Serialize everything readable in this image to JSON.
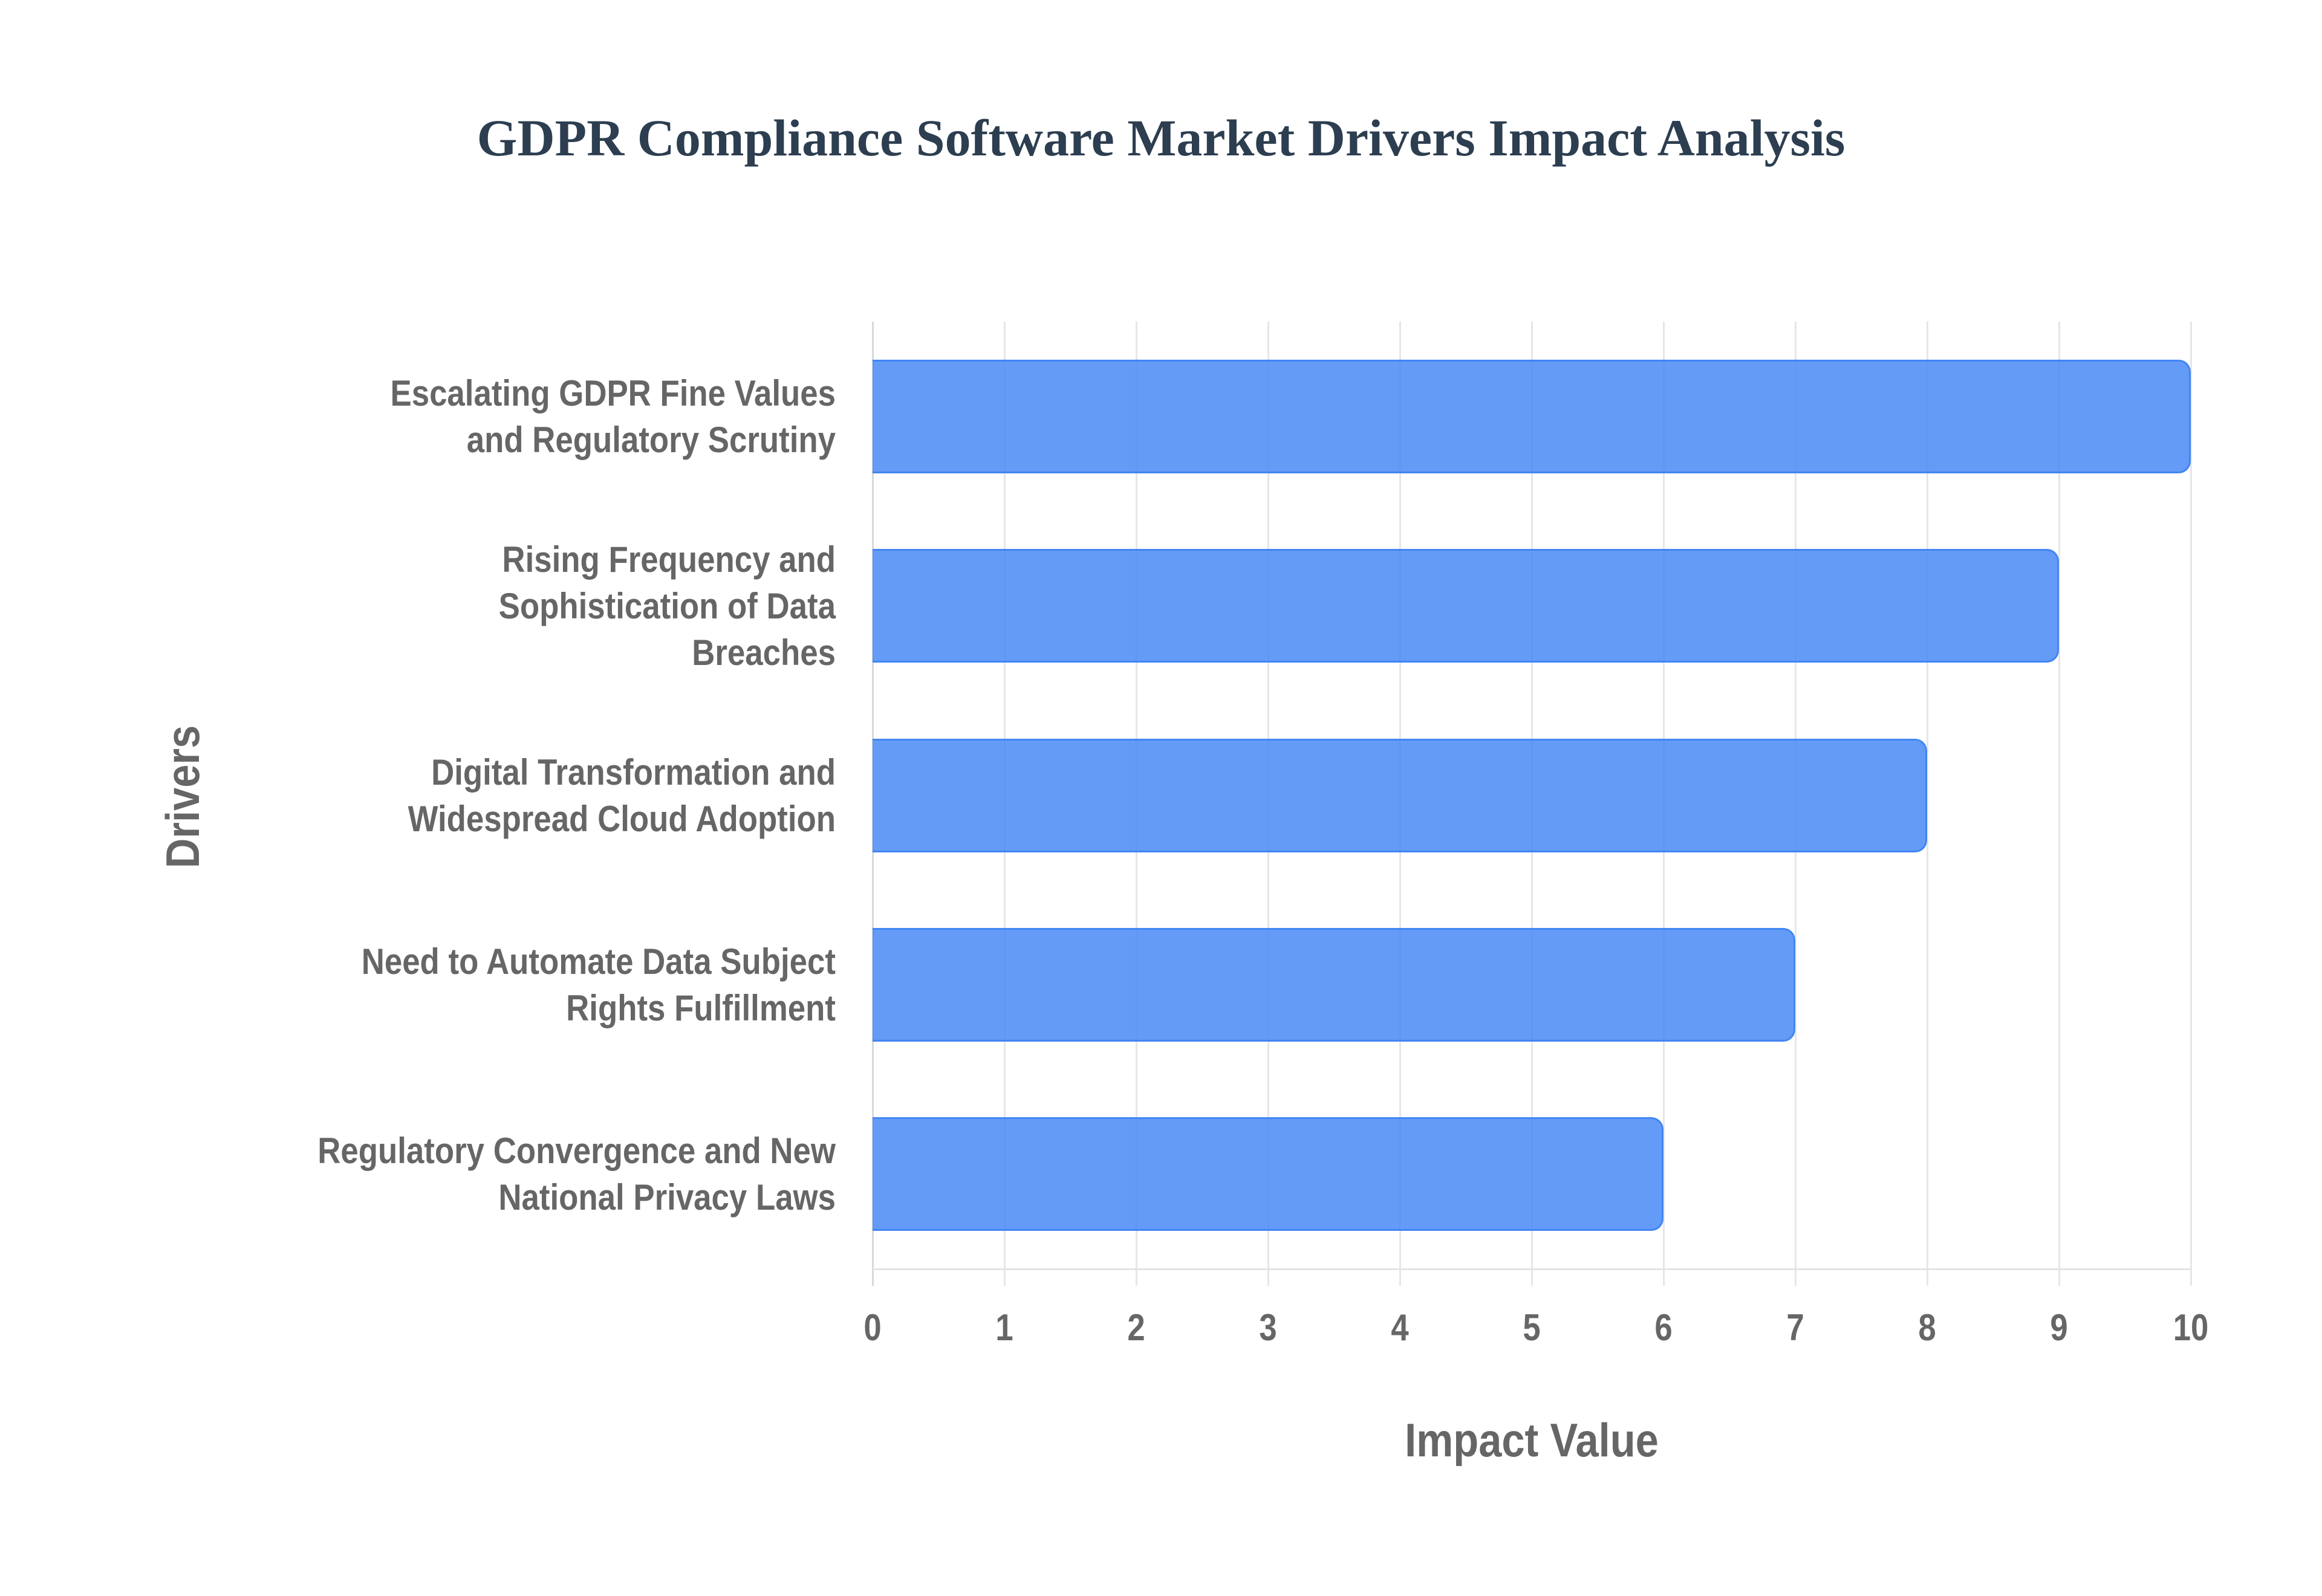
{
  "title": "GDPR Compliance Software Market Drivers Impact Analysis",
  "colors": {
    "title": "#2c3e50",
    "bar_fill": "rgba(66,133,244,0.82)",
    "bar_border": "#4285f4",
    "axis_text": "#666666",
    "grid": "#e6e6e6"
  },
  "axes": {
    "x_title": "Impact Value",
    "y_title": "Drivers",
    "x_ticks": [
      "0",
      "1",
      "2",
      "3",
      "4",
      "5",
      "6",
      "7",
      "8",
      "9",
      "10"
    ]
  },
  "bars": [
    {
      "label_lines": [
        "Escalating GDPR Fine Values",
        "and Regulatory Scrutiny"
      ],
      "value": 10
    },
    {
      "label_lines": [
        "Rising Frequency and",
        "Sophistication of Data",
        "Breaches"
      ],
      "value": 9
    },
    {
      "label_lines": [
        "Digital Transformation and",
        "Widespread Cloud Adoption"
      ],
      "value": 8
    },
    {
      "label_lines": [
        "Need to Automate Data Subject",
        "Rights Fulfillment"
      ],
      "value": 7
    },
    {
      "label_lines": [
        "Regulatory Convergence and New",
        "National Privacy Laws"
      ],
      "value": 6
    }
  ],
  "chart_data": {
    "type": "bar",
    "orientation": "horizontal",
    "title": "GDPR Compliance Software Market Drivers Impact Analysis",
    "categories": [
      "Escalating GDPR Fine Values and Regulatory Scrutiny",
      "Rising Frequency and Sophistication of Data Breaches",
      "Digital Transformation and Widespread Cloud Adoption",
      "Need to Automate Data Subject Rights Fulfillment",
      "Regulatory Convergence and New National Privacy Laws"
    ],
    "values": [
      10,
      9,
      8,
      7,
      6
    ],
    "xlabel": "Impact Value",
    "ylabel": "Drivers",
    "xlim": [
      0,
      10
    ],
    "x_ticks": [
      0,
      1,
      2,
      3,
      4,
      5,
      6,
      7,
      8,
      9,
      10
    ],
    "grid": true,
    "legend": null
  }
}
